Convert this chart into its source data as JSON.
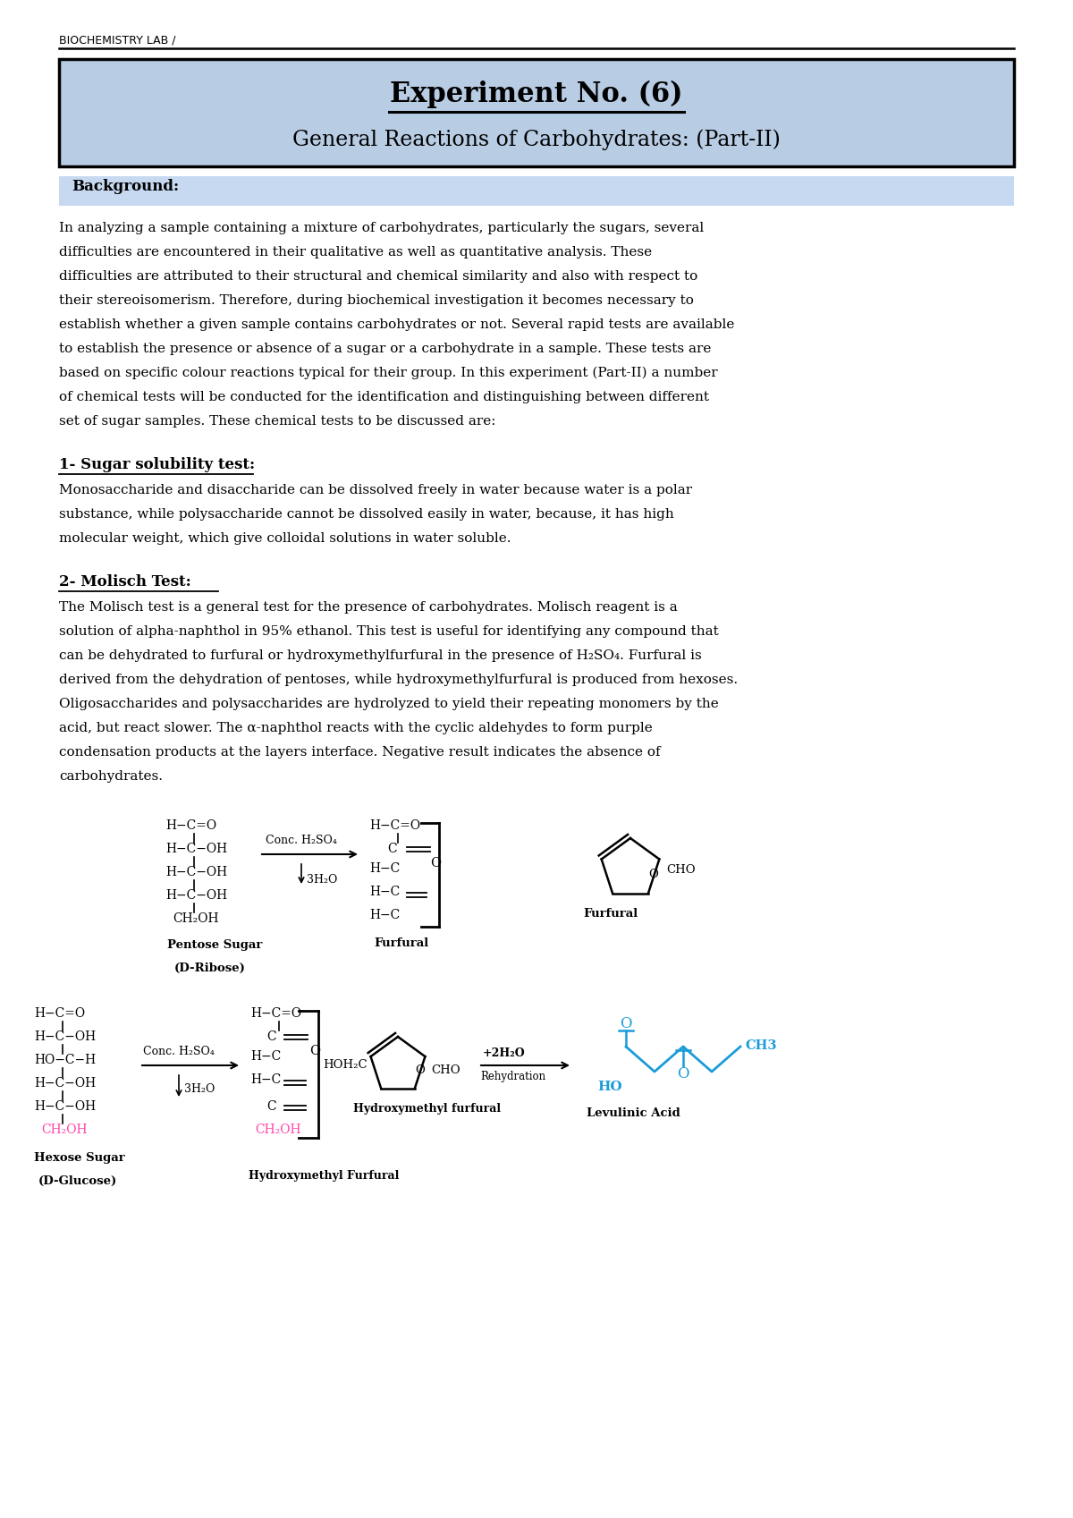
{
  "page_bg": "#ffffff",
  "header_text": "BIOCHEMISTRY LAB /",
  "title_box_bg": "#b8cce4",
  "title_line1": "Experiment No. (6)",
  "title_line2": "General Reactions of Carbohydrates: (Part-II)",
  "section_bg": "#c6d9f0",
  "background_label": "Background:",
  "body_para1": "In analyzing a sample containing a mixture of carbohydrates, particularly the sugars, several difficulties are encountered in their qualitative as well as quantitative analysis. These difficulties are attributed to their structural and chemical similarity and also with respect to their stereoisomerism. Therefore, during biochemical investigation it becomes necessary to establish whether a given sample contains carbohydrates or not. Several rapid tests are available to establish the presence or absence of a sugar or a carbohydrate in a sample. These tests are based on specific colour reactions typical for their group. In this experiment (Part-II) a number of chemical tests will be conducted for the identification and distinguishing between different set of sugar samples. These chemical tests to be discussed are:",
  "sec1_title": "1- Sugar solubility test:",
  "sec1_body": "Monosaccharide and disaccharide can be dissolved freely in water because water is a polar substance, while polysaccharide cannot be dissolved easily in water, because, it has high molecular weight, which give colloidal solutions in water soluble.",
  "sec2_title": "2- Molisch Test:",
  "sec2_body": "The Molisch test is a general test for the presence of carbohydrates. Molisch reagent is a solution of alpha-naphthol in 95% ethanol. This test is useful for identifying any compound that can be dehydrated to furfural or hydroxymethylfurfural in the presence of H₂SO₄. Furfural is derived from the dehydration of pentoses, while hydroxymethylfurfural is produced from hexoses. Oligosaccharides and polysaccharides are hydrolyzed to yield their repeating monomers by the acid, but react slower. The α-naphthol reacts with the cyclic aldehydes to form purple condensation products at the layers interface. Negative result indicates the absence of carbohydrates.",
  "pink_color": "#FF44AA",
  "blue_color": "#1B9CD8",
  "black_color": "#000000"
}
